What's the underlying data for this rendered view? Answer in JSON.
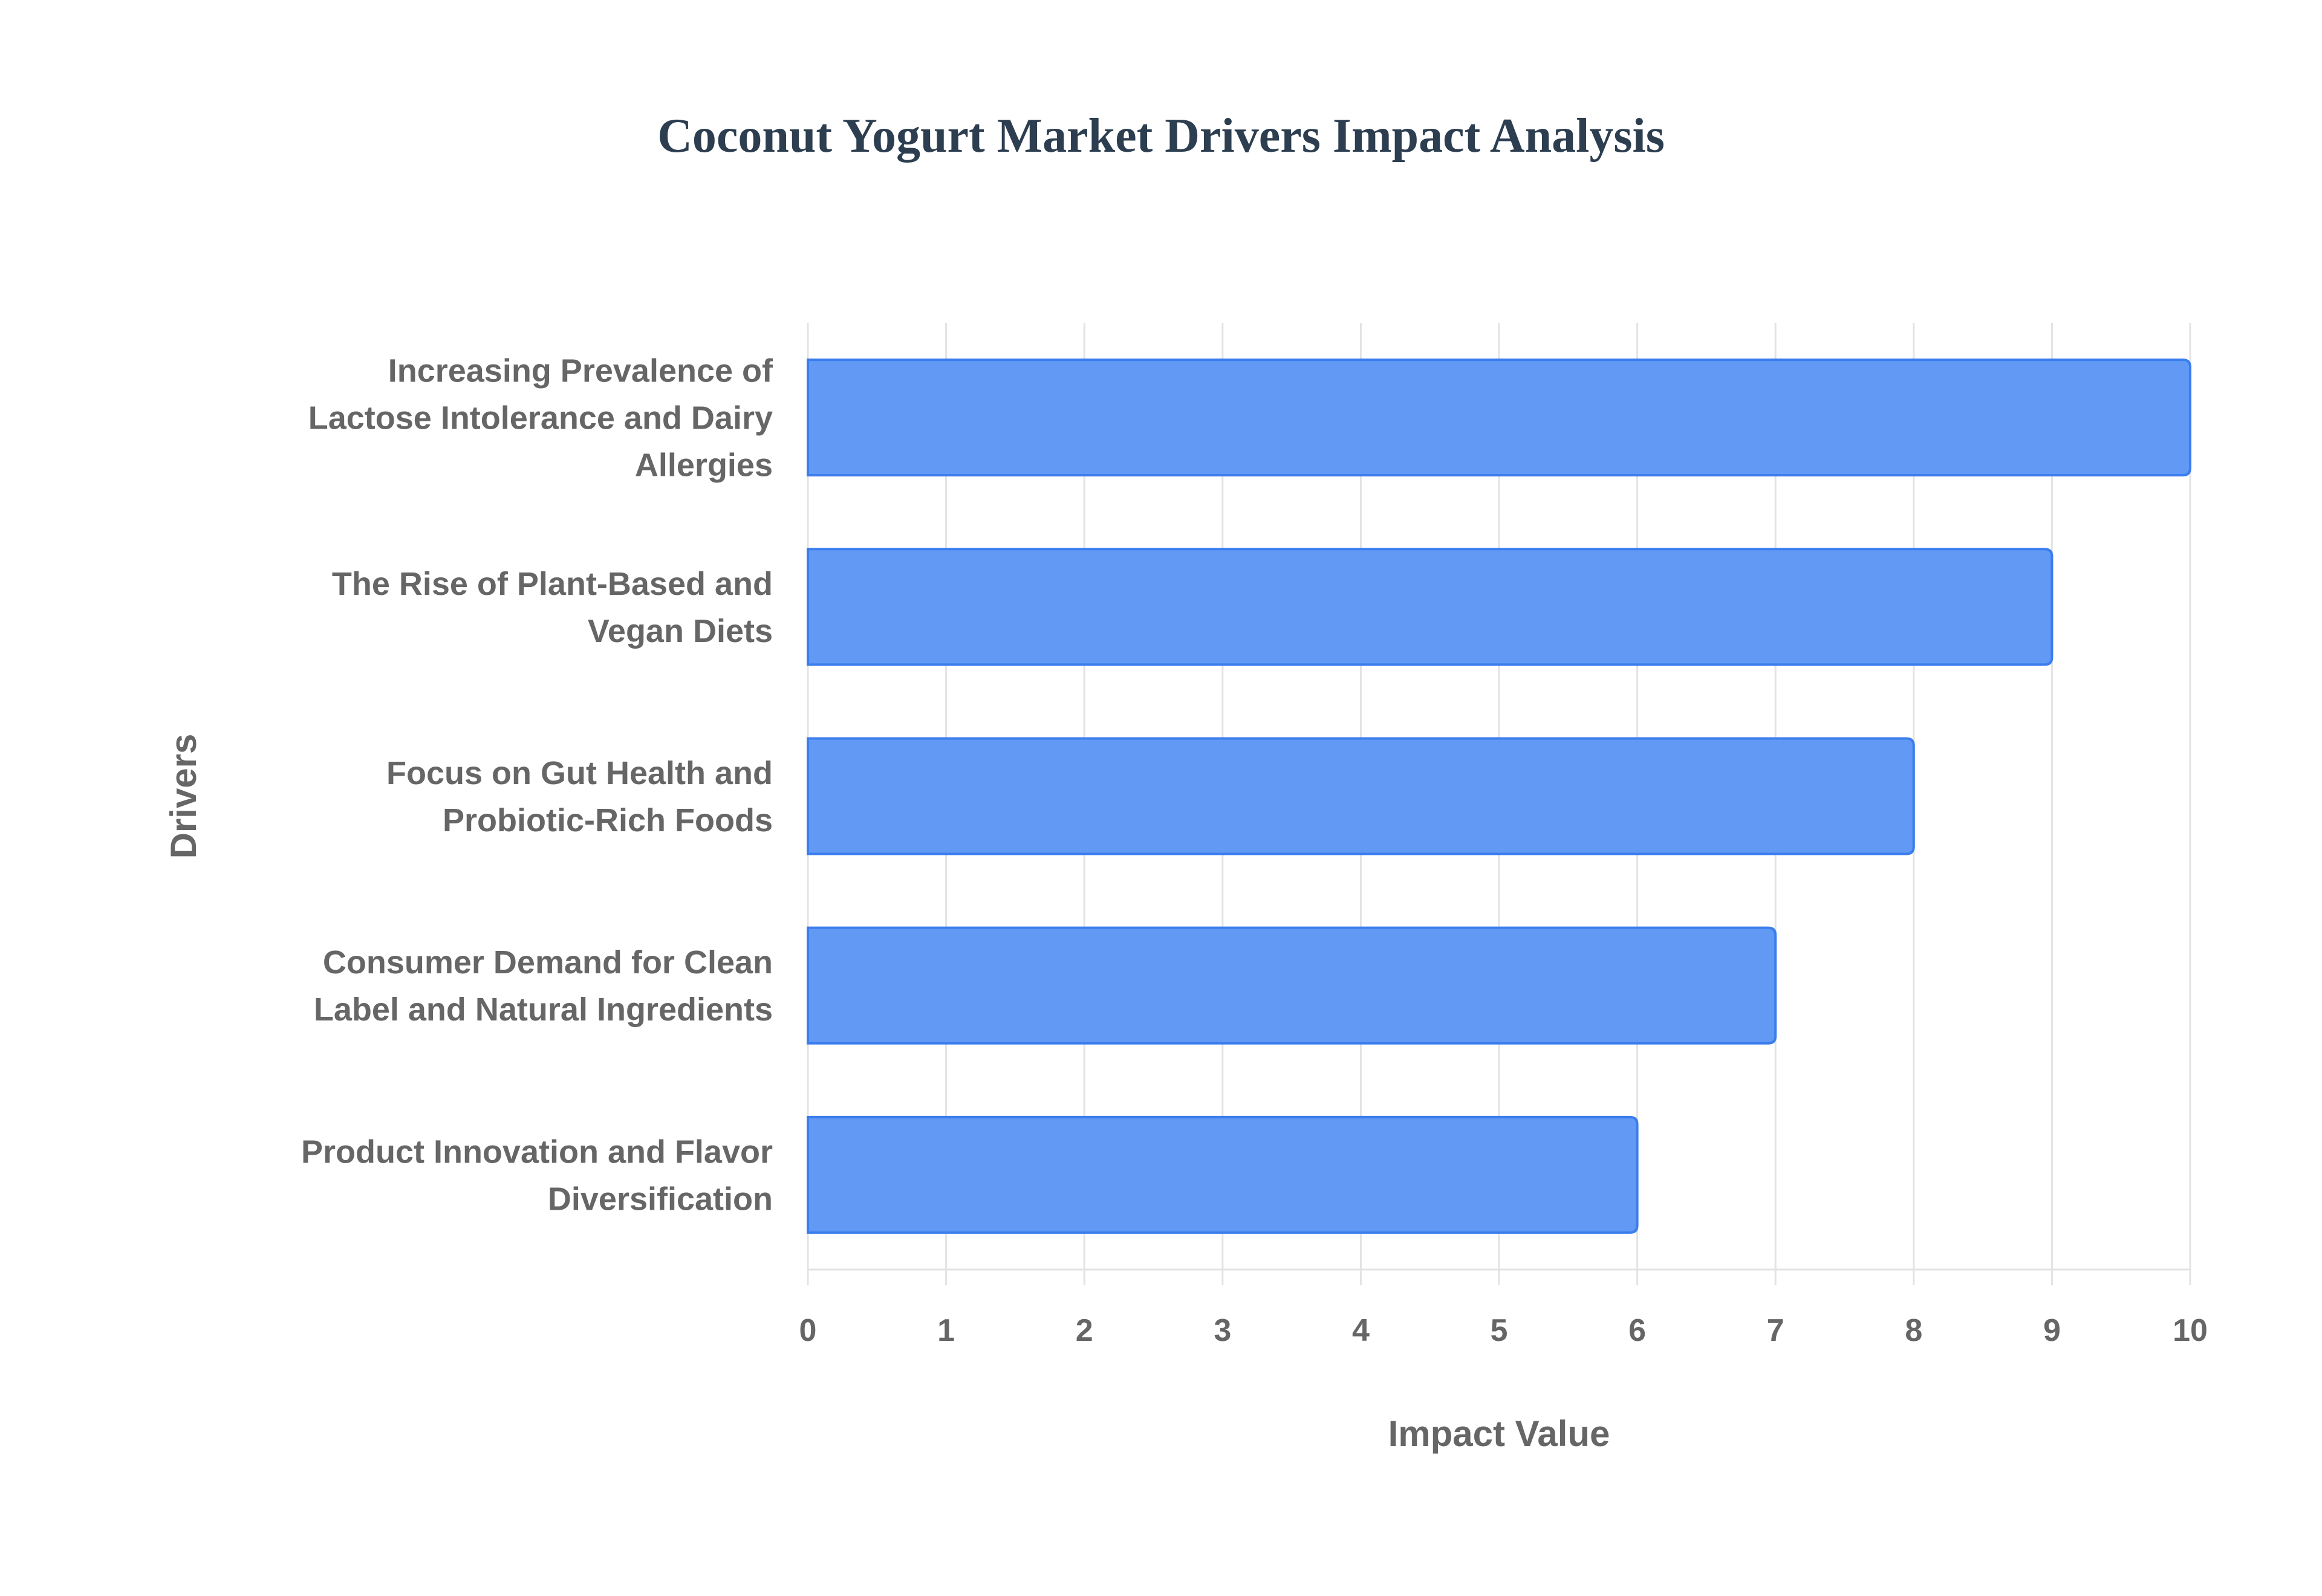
{
  "chart_data": {
    "type": "bar",
    "orientation": "horizontal",
    "title": "Coconut Yogurt Market Drivers Impact Analysis",
    "xlabel": "Impact Value",
    "ylabel": "Drivers",
    "xlim": [
      0,
      10
    ],
    "xticks": [
      "0",
      "1",
      "2",
      "3",
      "4",
      "5",
      "6",
      "7",
      "8",
      "9",
      "10"
    ],
    "grid": true,
    "categories": [
      [
        "Increasing Prevalence of",
        "Lactose Intolerance and Dairy",
        "Allergies"
      ],
      [
        "The Rise of Plant-Based and",
        "Vegan Diets"
      ],
      [
        "Focus on Gut Health and",
        "Probiotic-Rich Foods"
      ],
      [
        "Consumer Demand for Clean",
        "Label and Natural Ingredients"
      ],
      [
        "Product Innovation and Flavor",
        "Diversification"
      ]
    ],
    "values": [
      10,
      9,
      8,
      7,
      6
    ],
    "colors": {
      "bar_fill": "#6199f5",
      "bar_border": "#3b7ded"
    }
  }
}
